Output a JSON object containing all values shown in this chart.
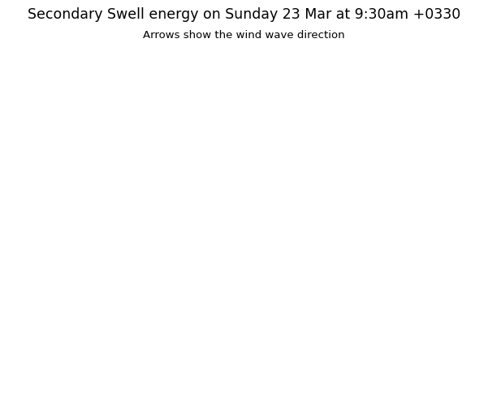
{
  "title": "Secondary Swell energy on Sunday 23 Mar at 9:30am +0330",
  "subtitle": "Arrows show the wind wave direction",
  "title_fontsize": 12.5,
  "subtitle_fontsize": 9.5,
  "fig_width": 6.01,
  "fig_height": 5.1,
  "dpi": 100,
  "header_bg": "#ffffff",
  "map_bg": "#aaaaaa",
  "border_color": "#000000",
  "title_color": "#000000",
  "subtitle_color": "#000000",
  "extent": [
    25,
    75,
    15,
    47
  ],
  "central_lon": 50,
  "central_lat": 31
}
